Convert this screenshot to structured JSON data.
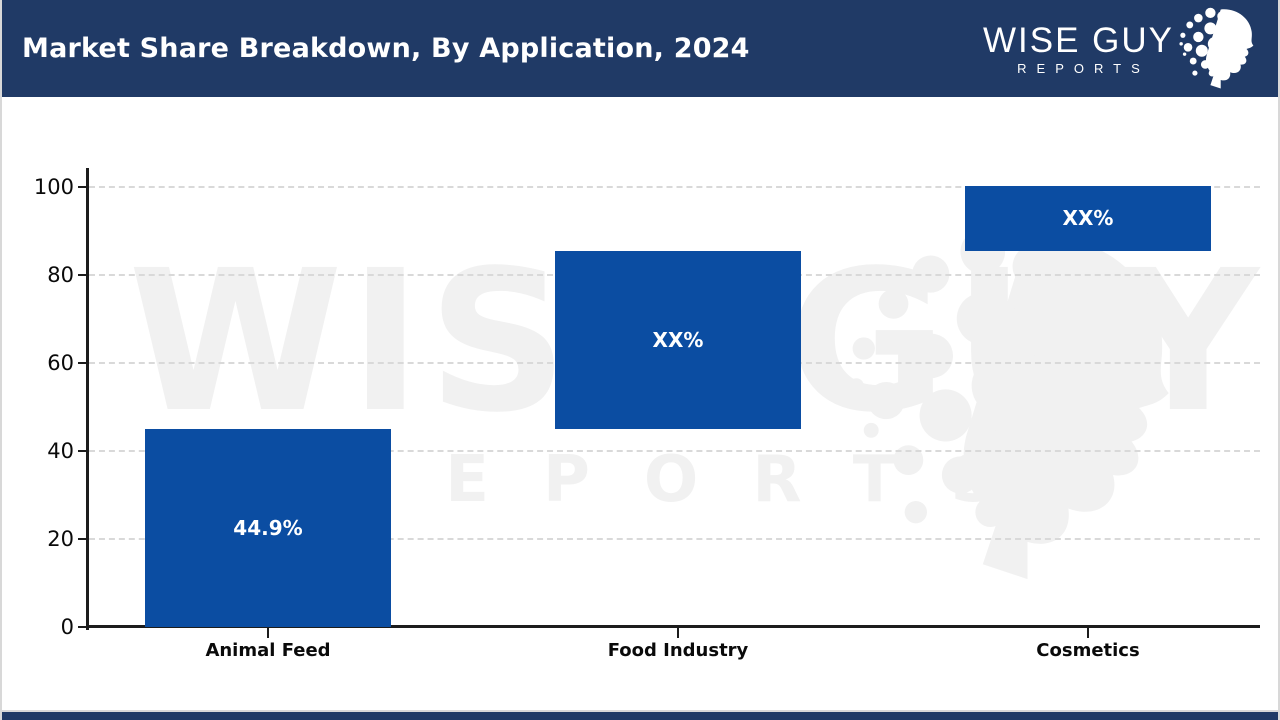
{
  "header": {
    "title": "Market Share Breakdown, By Application, 2024",
    "logo": {
      "line1": "WISE GUY",
      "line2": "REPORTS"
    }
  },
  "watermark": {
    "line1": "WISE GUY",
    "line2": "REPORTS"
  },
  "chart_data": {
    "type": "bar",
    "variant": "floating-waterfall",
    "title": "Market Share Breakdown, By Application, 2024",
    "xlabel": "",
    "ylabel": "",
    "categories": [
      "Animal Feed",
      "Food Industry",
      "Cosmetics"
    ],
    "segments": [
      {
        "category": "Animal Feed",
        "start": 0,
        "end": 44.9,
        "label": "44.9%"
      },
      {
        "category": "Food Industry",
        "start": 45.0,
        "end": 85.4,
        "label": "XX%"
      },
      {
        "category": "Cosmetics",
        "start": 85.4,
        "end": 100.3,
        "label": "XX%"
      }
    ],
    "ylim": [
      0,
      105
    ],
    "yticks": [
      0,
      20,
      40,
      60,
      80,
      100
    ],
    "grid": "dashed-horizontal-at-yticks",
    "legend": "none",
    "bar_color": "#0b4da2",
    "value_label_color": "#ffffff"
  },
  "colors": {
    "header_bg": "#203a66",
    "footer_bg": "#203a66",
    "bar": "#0b4da2",
    "axis": "#1c1c1c",
    "grid": "#d9d9d9",
    "watermark": "#f1f1f1",
    "title_text": "#ffffff"
  }
}
